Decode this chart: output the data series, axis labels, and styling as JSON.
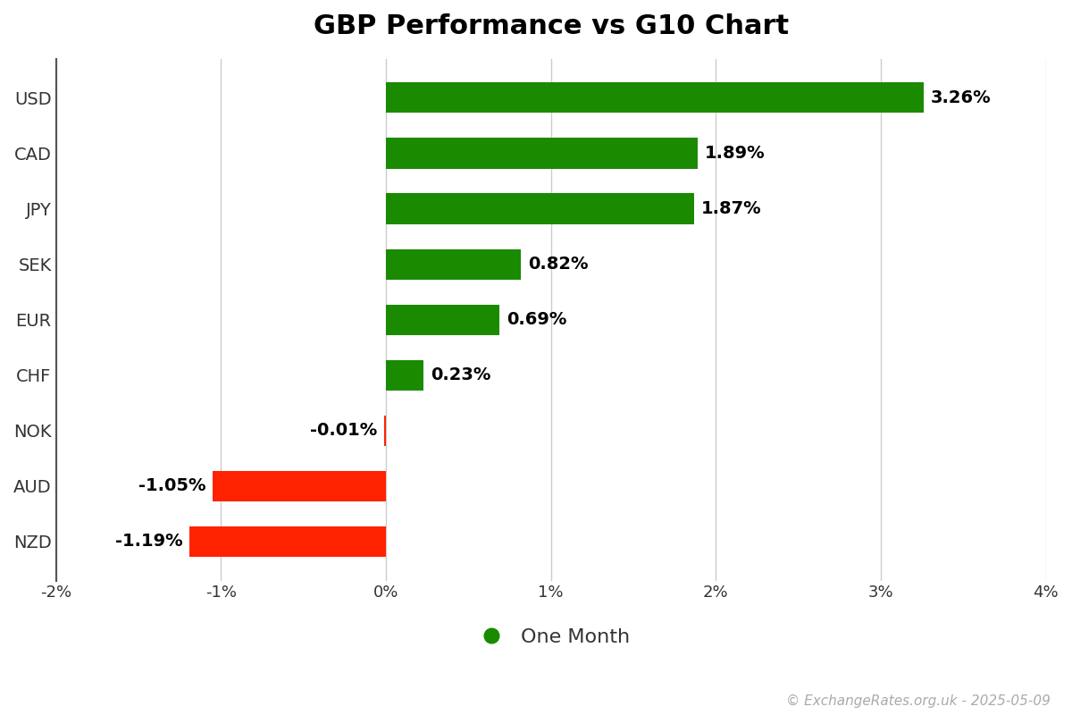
{
  "title": "GBP Performance vs G10 Chart",
  "currencies": [
    "USD",
    "CAD",
    "JPY",
    "SEK",
    "EUR",
    "CHF",
    "NOK",
    "AUD",
    "NZD"
  ],
  "values": [
    3.26,
    1.89,
    1.87,
    0.82,
    0.69,
    0.23,
    -0.01,
    -1.05,
    -1.19
  ],
  "positive_color": "#1a8a00",
  "negative_color": "#ff2200",
  "xlim": [
    -2.0,
    4.0
  ],
  "xticks": [
    -2,
    -1,
    0,
    1,
    2,
    3,
    4
  ],
  "xtick_labels": [
    "-2%",
    "-1%",
    "0%",
    "1%",
    "2%",
    "3%",
    "4%"
  ],
  "background_color": "#ffffff",
  "grid_color": "#cccccc",
  "title_fontsize": 22,
  "tick_fontsize": 13,
  "ytick_fontsize": 14,
  "bar_label_fontsize": 14,
  "legend_label": "One Month",
  "legend_color": "#1a8a00",
  "watermark": "© ExchangeRates.org.uk - 2025-05-09",
  "watermark_color": "#aaaaaa",
  "watermark_fontsize": 11,
  "bar_height": 0.55
}
